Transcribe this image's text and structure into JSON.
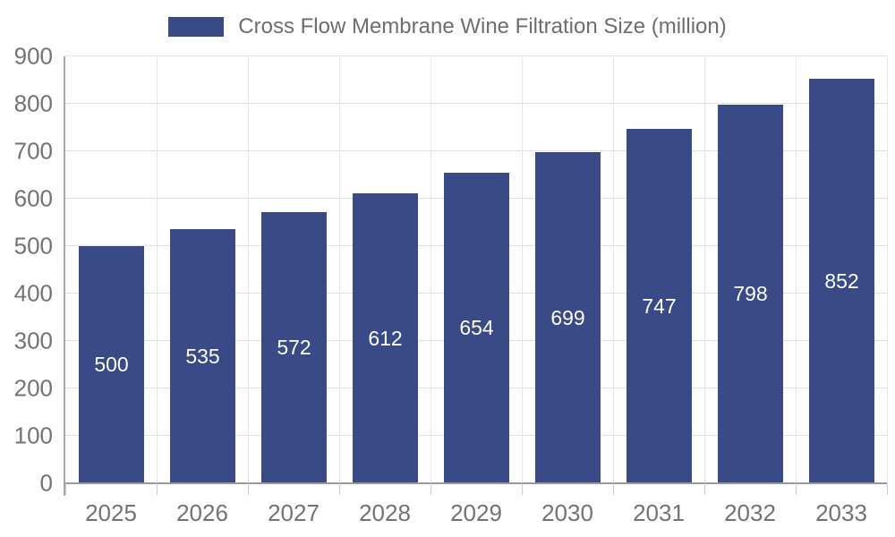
{
  "chart_data": {
    "type": "bar",
    "title": "Cross Flow Membrane Wine Filtration Size (million)",
    "categories": [
      "2025",
      "2026",
      "2027",
      "2028",
      "2029",
      "2030",
      "2031",
      "2032",
      "2033"
    ],
    "values": [
      500,
      535,
      572,
      612,
      654,
      699,
      747,
      798,
      852
    ],
    "series": [
      {
        "name": "Cross Flow Membrane Wine Filtration Size (million)",
        "values": [
          500,
          535,
          572,
          612,
          654,
          699,
          747,
          798,
          852
        ]
      }
    ],
    "xlabel": "",
    "ylabel": "",
    "ylim": [
      0,
      900
    ],
    "yticks": [
      0,
      100,
      200,
      300,
      400,
      500,
      600,
      700,
      800,
      900
    ],
    "grid": "on",
    "legend_position": "top",
    "data_labels": "inside-center-white"
  },
  "legend": {
    "label": "Cross Flow Membrane Wine Filtration Size (million)"
  },
  "colors": {
    "bar": "#394a87",
    "bar_label": "#ffffff",
    "axis_text": "#737373",
    "legend_text": "#6e6e6e",
    "gridline": "#e2e2e2",
    "axis_line": "#999999"
  }
}
